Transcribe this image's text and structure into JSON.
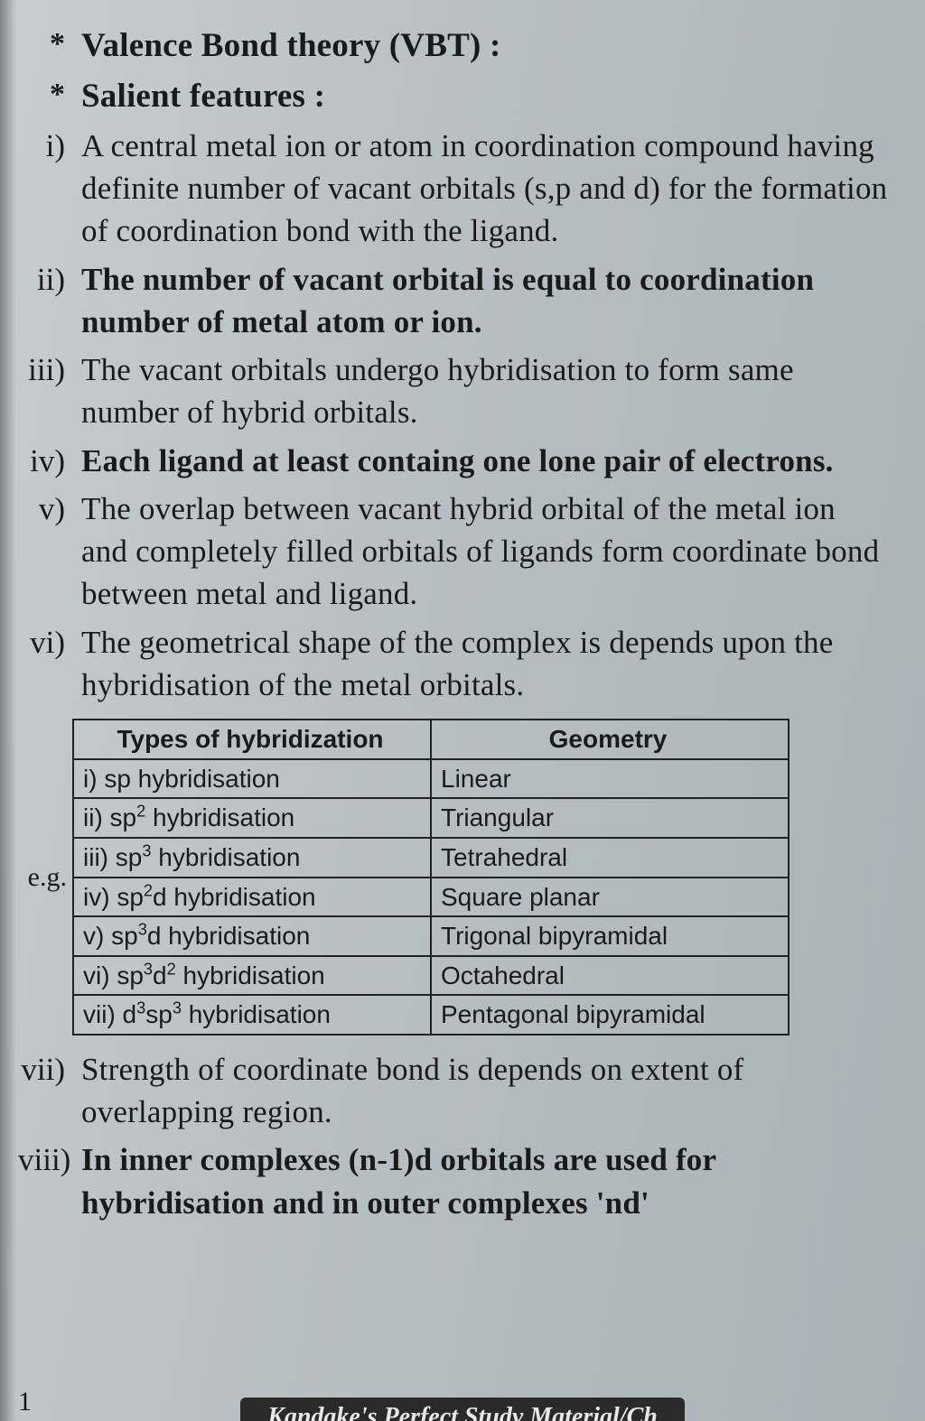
{
  "title_main": "Valence Bond theory (VBT) :",
  "title_sub": "Salient features :",
  "items": [
    {
      "marker": "i)",
      "bold": false,
      "text": "A central metal ion or atom in coordination compound having definite number of vacant orbitals (s,p and d) for the formation of coordination bond with the ligand."
    },
    {
      "marker": "ii)",
      "bold": true,
      "text": "The number of vacant orbital is equal to coordination number of metal atom or ion."
    },
    {
      "marker": "iii)",
      "bold": false,
      "text": "The vacant orbitals undergo hybridisation to form same number of hybrid orbitals."
    },
    {
      "marker": "iv)",
      "bold": true,
      "text": "Each ligand at least containg one lone pair of electrons."
    },
    {
      "marker": "v)",
      "bold": false,
      "text": "The overlap between vacant hybrid orbital of the metal ion and completely filled orbitals of ligands form coordinate bond between metal and ligand."
    },
    {
      "marker": "vi)",
      "bold": false,
      "text": "The geometrical shape of the complex is depends upon the hybridisation of the metal orbitals."
    }
  ],
  "items_after": [
    {
      "marker": "vii)",
      "bold": false,
      "text": "Strength of coordinate bond is depends on extent of overlapping region."
    },
    {
      "marker": "viii)",
      "bold": true,
      "text": "In inner complexes (n-1)d orbitals are used for hybridisation and in outer complexes 'nd'"
    }
  ],
  "eg_label": "e.g.",
  "table": {
    "header": [
      "Types of hybridization",
      "Geometry"
    ],
    "rows": [
      {
        "label": "i) sp hybridisation",
        "geom": "Linear"
      },
      {
        "label": "ii) sp<sup>2</sup> hybridisation",
        "geom": "Triangular"
      },
      {
        "label": "iii) sp<sup>3</sup> hybridisation",
        "geom": "Tetrahedral"
      },
      {
        "label": "iv) sp<sup>2</sup>d hybridisation",
        "geom": "Square planar"
      },
      {
        "label": "v) sp<sup>3</sup>d hybridisation",
        "geom": "Trigonal bipyramidal"
      },
      {
        "label": "vi) sp<sup>3</sup>d<sup>2</sup> hybridisation",
        "geom": "Octahedral"
      },
      {
        "label": "vii) d<sup>3</sup>sp<sup>3</sup> hybridisation",
        "geom": "Pentagonal bipyramidal"
      }
    ],
    "col_widths": [
      "370px",
      "370px"
    ]
  },
  "footer_text": "Kandake's Perfect Study Material/Ch",
  "page_num": "1",
  "colors": {
    "text": "#1a1a1a",
    "border": "#222222",
    "footer_bg": "#2a2a2a",
    "footer_text": "#e8e8e8"
  }
}
